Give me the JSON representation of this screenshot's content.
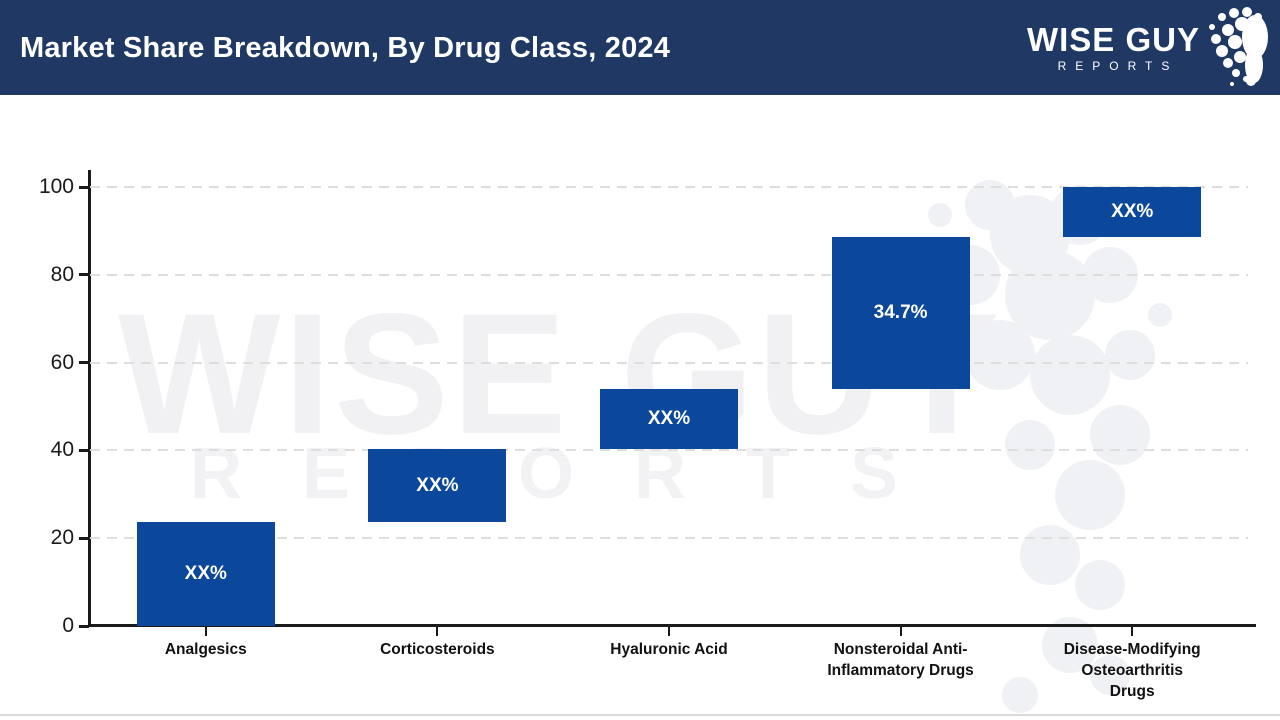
{
  "header": {
    "title": "Market Share Breakdown, By Drug Class, 2024",
    "logo_line1": "WISE GUY",
    "logo_line2": "REPORTS",
    "bg_color": "#1f3864"
  },
  "watermark": {
    "line1": "WISE GUY",
    "line2": "REPORTS"
  },
  "chart_data": {
    "type": "bar",
    "subtype": "floating-segment-waterfall",
    "title": "Market Share Breakdown, By Drug Class, 2024",
    "categories": [
      "Analgesics",
      "Corticosteroids",
      "Hyaluronic Acid",
      "Nonsteroidal Anti-Inflammatory Drugs",
      "Disease-Modifying Osteoarthritis Drugs"
    ],
    "category_lines": [
      [
        "Analgesics"
      ],
      [
        "Corticosteroids"
      ],
      [
        "Hyaluronic Acid"
      ],
      [
        "Nonsteroidal Anti-",
        "Inflammatory Drugs"
      ],
      [
        "Disease-Modifying",
        "Osteoarthritis",
        "Drugs"
      ]
    ],
    "segments": [
      {
        "category": "Analgesics",
        "start": 0,
        "end": 23.6,
        "value": 23.6,
        "value_label": "XX%"
      },
      {
        "category": "Corticosteroids",
        "start": 23.6,
        "end": 40.3,
        "value": 16.7,
        "value_label": "XX%"
      },
      {
        "category": "Hyaluronic Acid",
        "start": 40.3,
        "end": 54.0,
        "value": 13.7,
        "value_label": "XX%"
      },
      {
        "category": "Nonsteroidal Anti-Inflammatory Drugs",
        "start": 54.0,
        "end": 88.7,
        "value": 34.7,
        "value_label": "34.7%"
      },
      {
        "category": "Disease-Modifying Osteoarthritis Drugs",
        "start": 88.7,
        "end": 100,
        "value": 11.3,
        "value_label": "XX%"
      }
    ],
    "y_ticks": [
      0,
      20,
      40,
      60,
      80,
      100
    ],
    "ylim": [
      0,
      100
    ],
    "xlabel": "",
    "ylabel": "",
    "grid": "horizontal-dashed",
    "legend": "none",
    "bar_color": "#0b479a",
    "label_color": "#ffffff",
    "axis_color": "#1a1a1a"
  }
}
